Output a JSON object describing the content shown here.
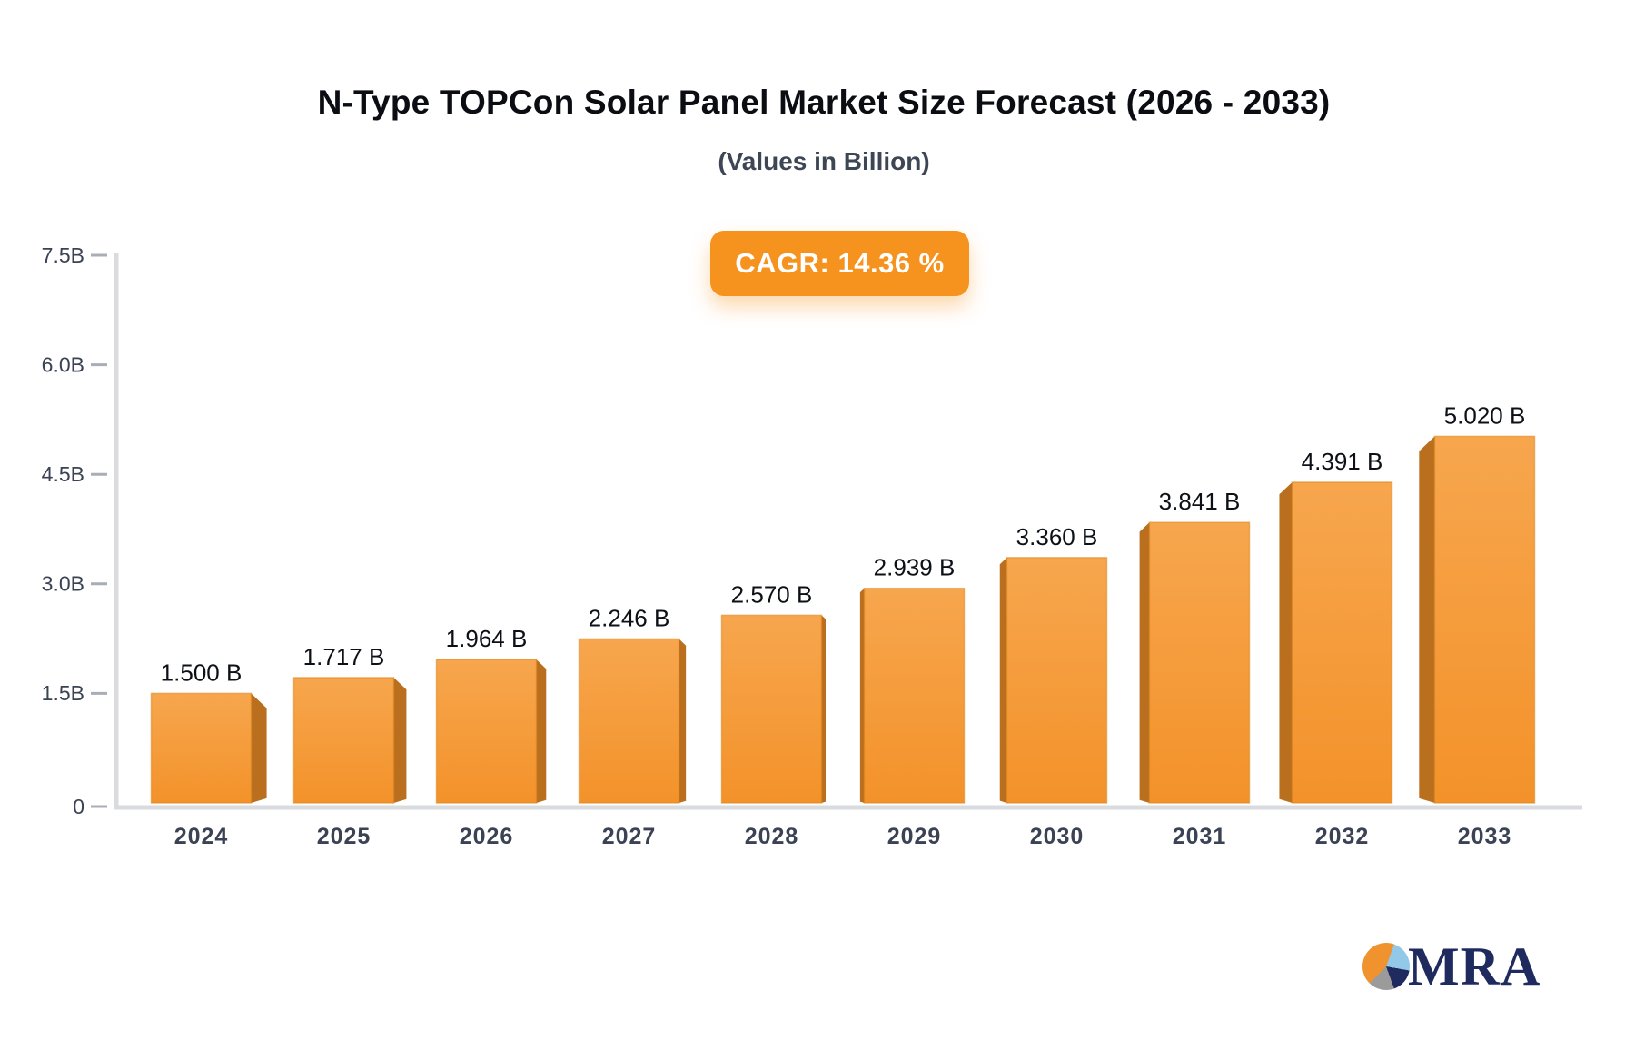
{
  "header": {
    "title": "N-Type TOPCon Solar Panel Market Size Forecast (2026 - 2033)",
    "subtitle": "(Values in Billion)"
  },
  "badge": {
    "label": "CAGR: 14.36 %"
  },
  "chart_data": {
    "type": "bar",
    "title": "N-Type TOPCon Solar Panel Market Size Forecast (2026 - 2033)",
    "subtitle": "(Values in Billion)",
    "categories": [
      "2024",
      "2025",
      "2026",
      "2027",
      "2028",
      "2029",
      "2030",
      "2031",
      "2032",
      "2033"
    ],
    "values": [
      1.5,
      1.717,
      1.964,
      2.246,
      2.57,
      2.939,
      3.36,
      3.841,
      4.391,
      5.02
    ],
    "bar_labels": [
      "1.500 B",
      "1.717 B",
      "1.964 B",
      "2.246 B",
      "2.570 B",
      "2.939 B",
      "3.360 B",
      "3.841 B",
      "4.391 B",
      "5.020 B"
    ],
    "xlabel": "",
    "ylabel": "",
    "ylim": [
      0,
      7.5
    ],
    "yticks": [
      0,
      1.5,
      3.0,
      4.5,
      6.0,
      7.5
    ],
    "ytick_labels": [
      "0",
      "1.5B",
      "3.0B",
      "4.5B",
      "6.0B",
      "7.5B"
    ],
    "grid": false,
    "legend": false,
    "bar_style": "pseudo-3d"
  },
  "colors": {
    "bar_face_top": "#F7A64E",
    "bar_face_bottom": "#F3922A",
    "bar_edge": "#DD8922",
    "bar_side": "#B96F1D",
    "axis_line": "#D9DBDF",
    "tick_dash": "#A9ADB5",
    "axis_label": "#3A4254",
    "value_label": "#0D1117",
    "badge_bg": "#F6921E",
    "badge_text": "#FFFFFF",
    "logo_navy": "#1F2B5E",
    "logo_orange": "#F0922D",
    "logo_lightblue": "#93C9E8",
    "logo_gray": "#9B9B9B"
  },
  "logo": {
    "text": "MRA"
  }
}
